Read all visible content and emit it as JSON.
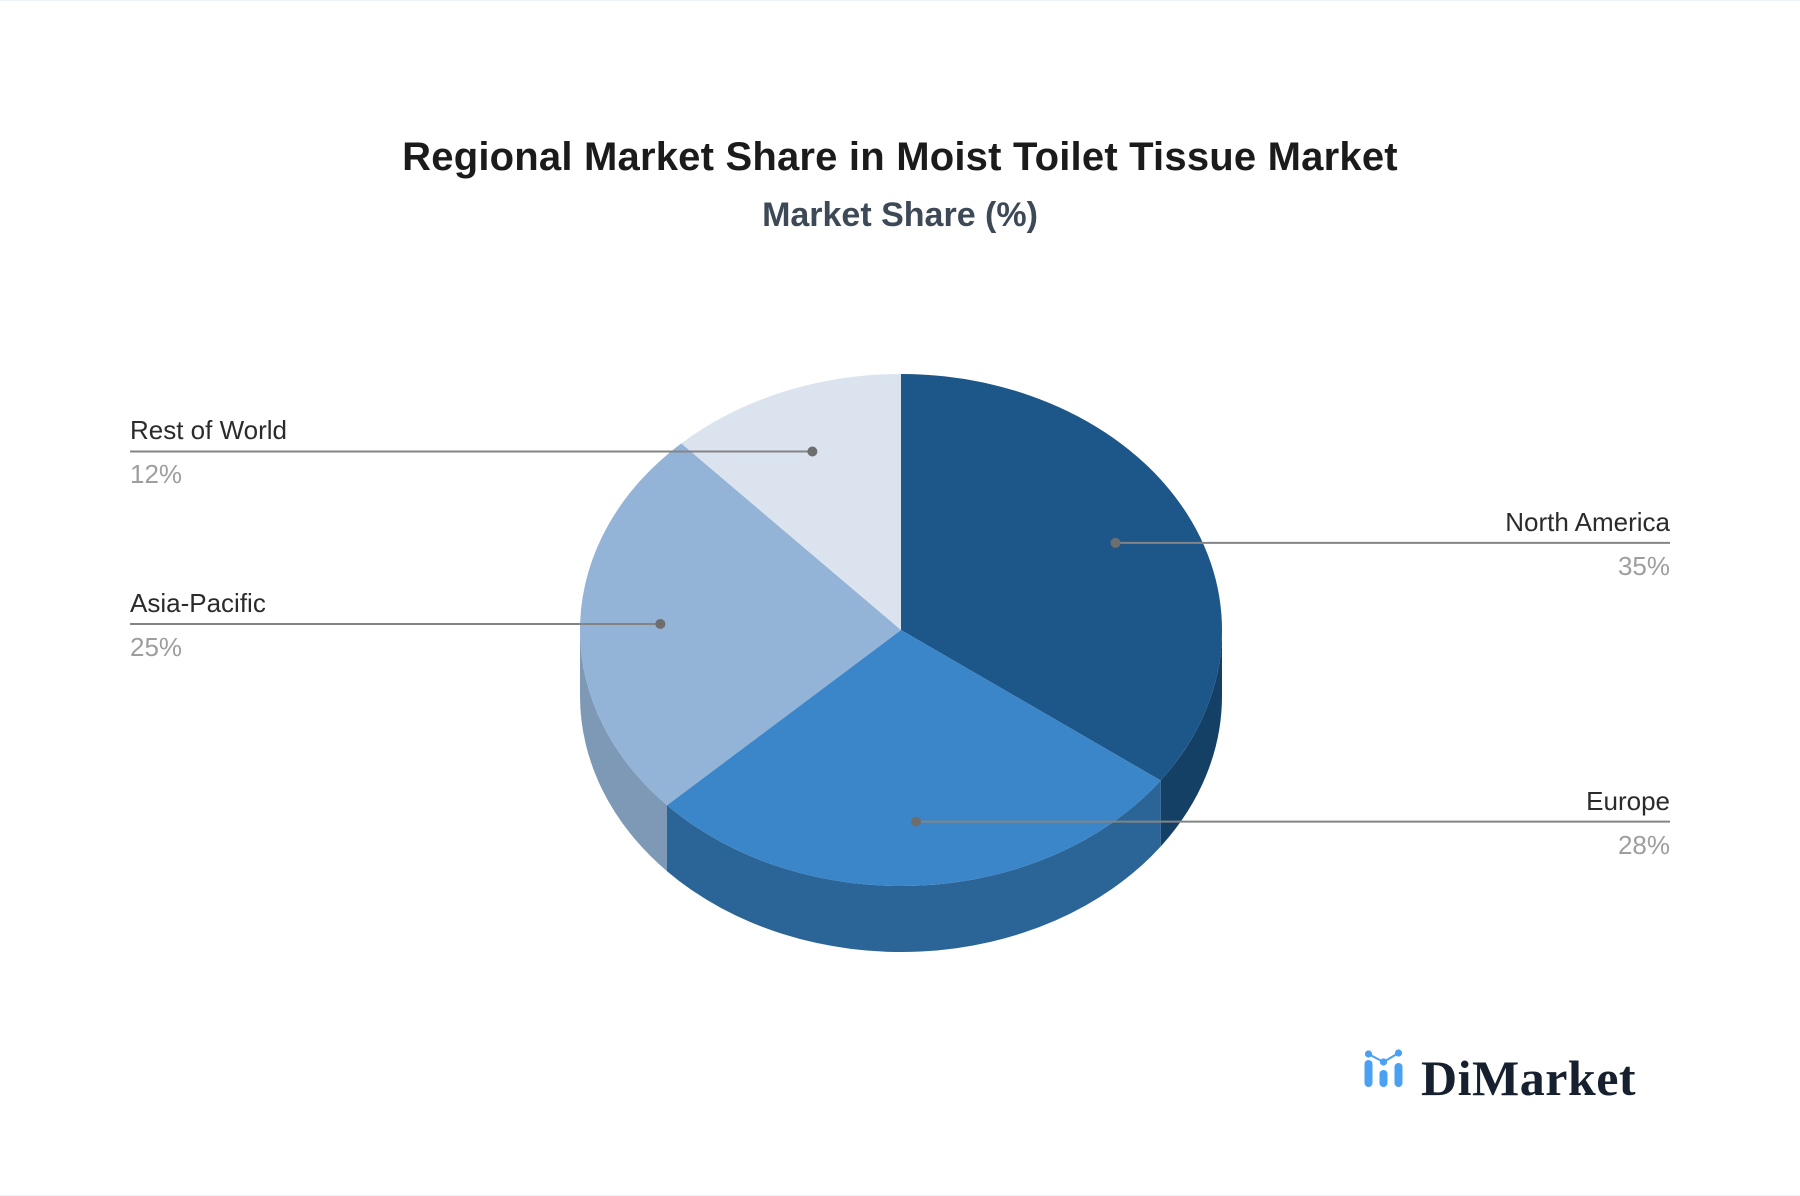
{
  "page": {
    "background": "#ffffff"
  },
  "header": {
    "title": "Regional Market Share in Moist Toilet Tissue Market",
    "subtitle": "Market Share (%)"
  },
  "chart_data": {
    "type": "pie",
    "style": "3d",
    "title": "Regional Market Share in Moist Toilet Tissue Market",
    "subtitle": "Market Share (%)",
    "unit": "%",
    "start_angle_deg": 0,
    "direction": "clockwise",
    "categories": [
      "North America",
      "Europe",
      "Asia-Pacific",
      "Rest of World"
    ],
    "values": [
      35,
      28,
      25,
      12
    ],
    "labels": [
      {
        "name": "North America",
        "pct": "35%"
      },
      {
        "name": "Europe",
        "pct": "28%"
      },
      {
        "name": "Asia-Pacific",
        "pct": "25%"
      },
      {
        "name": "Rest of World",
        "pct": "12%"
      }
    ],
    "slice_colors": [
      {
        "top": "#1D5689",
        "side": "#154066"
      },
      {
        "top": "#3A86C8",
        "side": "#2B6496"
      },
      {
        "top": "#93B3D7",
        "side": "#7E99B6"
      },
      {
        "top": "#DBE3EF",
        "side": "#B9C4D4"
      }
    ],
    "leader_line_color": "#848484",
    "leader_dot_color": "#6e6e6e",
    "label_name_color": "#2b2b2b",
    "label_value_color": "#9e9e9e"
  },
  "branding": {
    "logo_text": "DiMarket",
    "logo_color": "#16202f",
    "logo_icon_color": "#4AA0F2"
  }
}
